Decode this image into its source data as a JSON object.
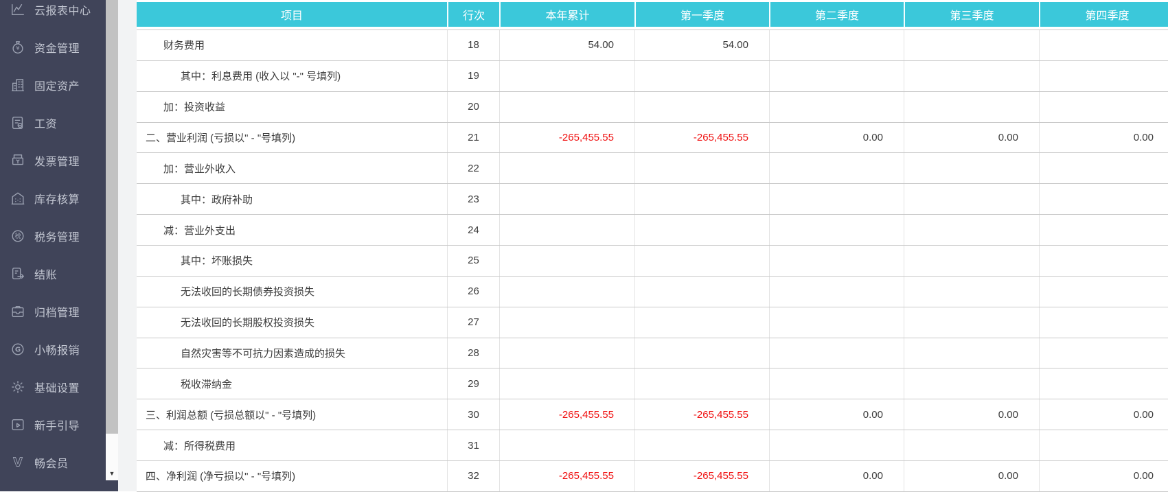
{
  "colors": {
    "header_bg": "#3BC8DA",
    "header_text": "#FFFFFF",
    "sidebar_bg": "#404459",
    "sidebar_text": "#C3C7D2",
    "negative_value": "#F01010",
    "row_border": "#C9C9C9"
  },
  "sidebar": {
    "items": [
      {
        "id": "cloud-report-center",
        "label": "云报表中心",
        "icon": "chart-line-icon"
      },
      {
        "id": "funds-management",
        "label": "资金管理",
        "icon": "money-bag-icon"
      },
      {
        "id": "fixed-assets",
        "label": "固定资产",
        "icon": "building-icon"
      },
      {
        "id": "payroll",
        "label": "工资",
        "icon": "payroll-icon"
      },
      {
        "id": "invoice-management",
        "label": "发票管理",
        "icon": "invoice-icon"
      },
      {
        "id": "inventory-accounting",
        "label": "库存核算",
        "icon": "warehouse-icon"
      },
      {
        "id": "tax-management",
        "label": "税务管理",
        "icon": "tax-icon"
      },
      {
        "id": "closing",
        "label": "结账",
        "icon": "closing-icon"
      },
      {
        "id": "archive-management",
        "label": "归档管理",
        "icon": "archive-icon"
      },
      {
        "id": "xiaochang-expense",
        "label": "小畅报销",
        "icon": "g-logo-icon"
      },
      {
        "id": "basic-settings",
        "label": "基础设置",
        "icon": "gear-icon"
      },
      {
        "id": "beginner-guide",
        "label": "新手引导",
        "icon": "guide-icon"
      },
      {
        "id": "chang-member",
        "label": "畅会员",
        "icon": "member-v-icon"
      }
    ],
    "scroll_down_glyph": "▼"
  },
  "table": {
    "columns": [
      {
        "key": "item",
        "label": "项目"
      },
      {
        "key": "line",
        "label": "行次"
      },
      {
        "key": "ytd",
        "label": "本年累计"
      },
      {
        "key": "q1",
        "label": "第一季度"
      },
      {
        "key": "q2",
        "label": "第二季度"
      },
      {
        "key": "q3",
        "label": "第三季度"
      },
      {
        "key": "q4",
        "label": "第四季度"
      }
    ],
    "rows": [
      {
        "item": "财务费用",
        "indent": 1,
        "line": "18",
        "ytd": "54.00",
        "q1": "54.00",
        "q2": "",
        "q3": "",
        "q4": ""
      },
      {
        "item": "其中：利息费用 (收入以 \"-\" 号填列)",
        "indent": 2,
        "line": "19",
        "ytd": "",
        "q1": "",
        "q2": "",
        "q3": "",
        "q4": ""
      },
      {
        "item": "加：投资收益",
        "indent": 1,
        "line": "20",
        "ytd": "",
        "q1": "",
        "q2": "",
        "q3": "",
        "q4": ""
      },
      {
        "item": "二、营业利润 (亏损以\" - \"号填列)",
        "indent": 0,
        "line": "21",
        "ytd": "-265,455.55",
        "q1": "-265,455.55",
        "q2": "0.00",
        "q3": "0.00",
        "q4": "0.00"
      },
      {
        "item": "加：营业外收入",
        "indent": 1,
        "line": "22",
        "ytd": "",
        "q1": "",
        "q2": "",
        "q3": "",
        "q4": ""
      },
      {
        "item": "其中：政府补助",
        "indent": 2,
        "line": "23",
        "ytd": "",
        "q1": "",
        "q2": "",
        "q3": "",
        "q4": ""
      },
      {
        "item": "减：营业外支出",
        "indent": 1,
        "line": "24",
        "ytd": "",
        "q1": "",
        "q2": "",
        "q3": "",
        "q4": ""
      },
      {
        "item": "其中：坏账损失",
        "indent": 2,
        "line": "25",
        "ytd": "",
        "q1": "",
        "q2": "",
        "q3": "",
        "q4": ""
      },
      {
        "item": "无法收回的长期债券投资损失",
        "indent": 2,
        "line": "26",
        "ytd": "",
        "q1": "",
        "q2": "",
        "q3": "",
        "q4": ""
      },
      {
        "item": "无法收回的长期股权投资损失",
        "indent": 2,
        "line": "27",
        "ytd": "",
        "q1": "",
        "q2": "",
        "q3": "",
        "q4": ""
      },
      {
        "item": "自然灾害等不可抗力因素造成的损失",
        "indent": 2,
        "line": "28",
        "ytd": "",
        "q1": "",
        "q2": "",
        "q3": "",
        "q4": ""
      },
      {
        "item": "税收滞纳金",
        "indent": 2,
        "line": "29",
        "ytd": "",
        "q1": "",
        "q2": "",
        "q3": "",
        "q4": ""
      },
      {
        "item": "三、利润总额 (亏损总额以\" - \"号填列)",
        "indent": 0,
        "line": "30",
        "ytd": "-265,455.55",
        "q1": "-265,455.55",
        "q2": "0.00",
        "q3": "0.00",
        "q4": "0.00"
      },
      {
        "item": "减：所得税费用",
        "indent": 1,
        "line": "31",
        "ytd": "",
        "q1": "",
        "q2": "",
        "q3": "",
        "q4": ""
      },
      {
        "item": "四、净利润 (净亏损以\" - \"号填列)",
        "indent": 0,
        "line": "32",
        "ytd": "-265,455.55",
        "q1": "-265,455.55",
        "q2": "0.00",
        "q3": "0.00",
        "q4": "0.00"
      }
    ]
  }
}
